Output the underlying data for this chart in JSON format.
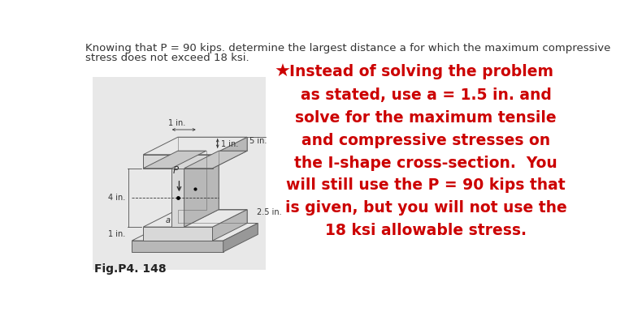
{
  "header_line1": "Knowing that P = 90 kips. determine the largest distance a for which the maximum compressive",
  "header_line2": "stress does not exceed 18 ksi.",
  "header_color": "#333333",
  "header_fontsize": 9.5,
  "red_text_lines": [
    "Instead of solving the problem",
    "as stated, use a = 1.5 in. and",
    "solve for the maximum tensile",
    "and compressive stresses on",
    "the I-shape cross-section.  You",
    "will still use the P = 90 kips that",
    "is given, but you will not use the",
    "18 ksi allowable stress."
  ],
  "red_text_color": "#cc0000",
  "red_text_fontsize": 13.5,
  "star_color": "#cc0000",
  "star_fontsize": 16,
  "caption_text": "Fig.P4. 148",
  "caption_color": "#222222",
  "caption_fontsize": 10.0,
  "bg_color": "#ffffff",
  "sketch_bg": "#e8e8e8",
  "face_light": "#d8d8d8",
  "face_mid": "#b8b8b8",
  "face_dark": "#989898",
  "face_top": "#e8e8e8",
  "edge_col": "#606060",
  "dim_color": "#333333",
  "dim_fs": 7.0
}
